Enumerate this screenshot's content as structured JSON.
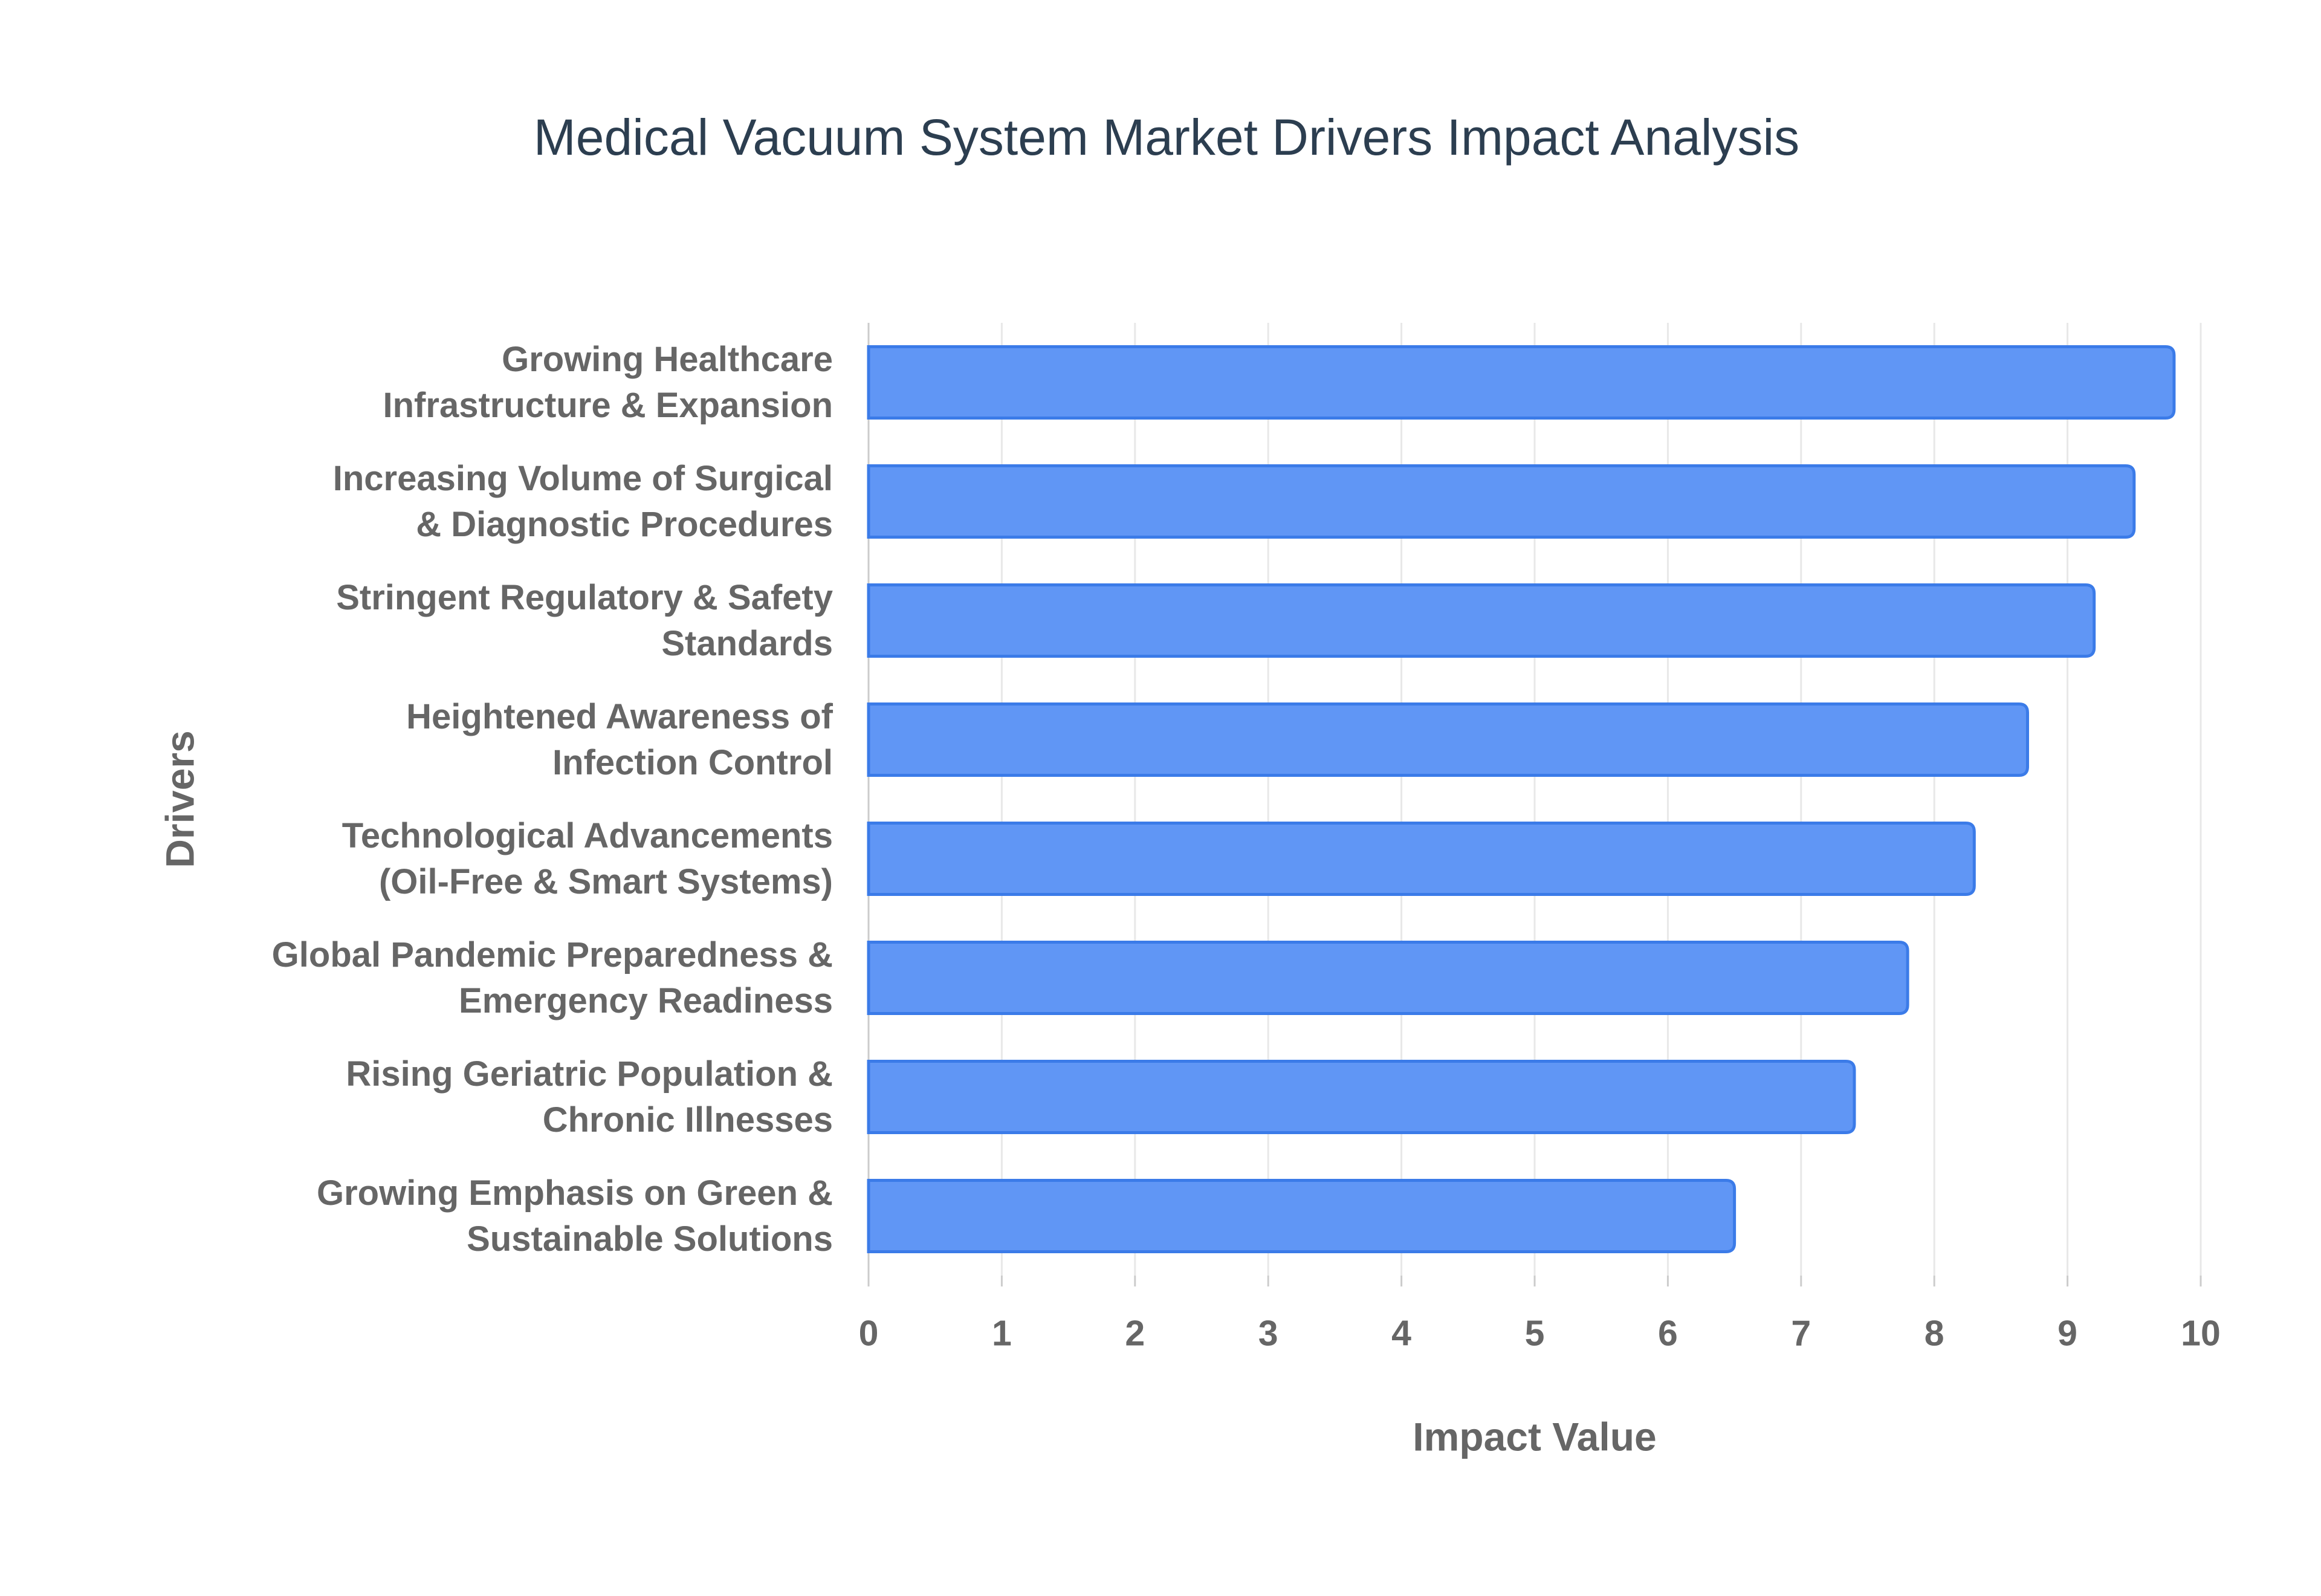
{
  "chart_data": {
    "type": "bar",
    "orientation": "horizontal",
    "title": "Medical Vacuum System Market Drivers Impact Analysis",
    "x_label": "Impact Value",
    "y_label": "Drivers",
    "categories": [
      "Growing Healthcare\nInfrastructure & Expansion",
      "Increasing Volume of Surgical\n& Diagnostic Procedures",
      "Stringent Regulatory & Safety\nStandards",
      "Heightened Awareness of\nInfection Control",
      "Technological Advancements\n(Oil-Free & Smart Systems)",
      "Global Pandemic Preparedness &\nEmergency Readiness",
      "Rising Geriatric Population &\nChronic Illnesses",
      "Growing Emphasis on Green &\nSustainable Solutions"
    ],
    "values": [
      9.8,
      9.5,
      9.2,
      8.7,
      8.3,
      7.8,
      7.4,
      6.5
    ],
    "color": "#6096f5",
    "edge_color": "#3b7be8",
    "xlim": [
      0,
      10
    ],
    "xticks": [
      0,
      1,
      2,
      3,
      4,
      5,
      6,
      7,
      8,
      9,
      10
    ],
    "grid": true
  }
}
